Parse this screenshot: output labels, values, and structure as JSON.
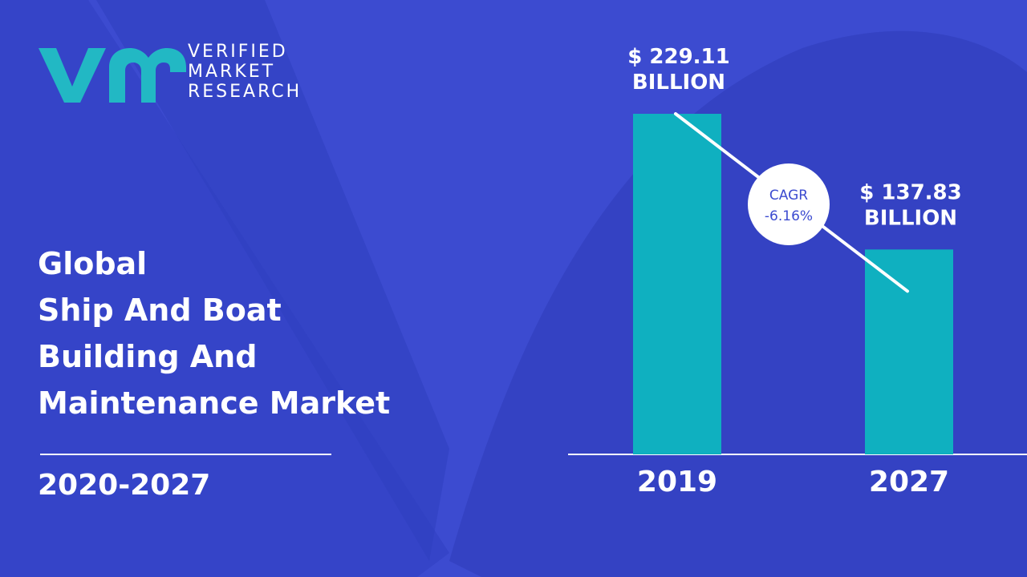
{
  "brand": {
    "line1": "VERIFIED",
    "line2": "MARKET",
    "line3": "RESEARCH",
    "logo_color": "#22b8c4"
  },
  "title_lines": [
    "Global",
    "Ship And Boat",
    "Building And",
    "Maintenance Market"
  ],
  "period": "2020-2027",
  "colors": {
    "background": "#3c4bd0",
    "bar": "#0fb0c0",
    "text": "#ffffff"
  },
  "chart_data": {
    "type": "bar",
    "categories": [
      "2019",
      "2027"
    ],
    "values": [
      229.11,
      137.83
    ],
    "value_labels": [
      [
        "$ 229.11",
        "BILLION"
      ],
      [
        "$ 137.83",
        "BILLION"
      ]
    ],
    "cagr": {
      "label": "CAGR",
      "value": "-6.16%"
    },
    "ylim": [
      0,
      229.11
    ]
  }
}
